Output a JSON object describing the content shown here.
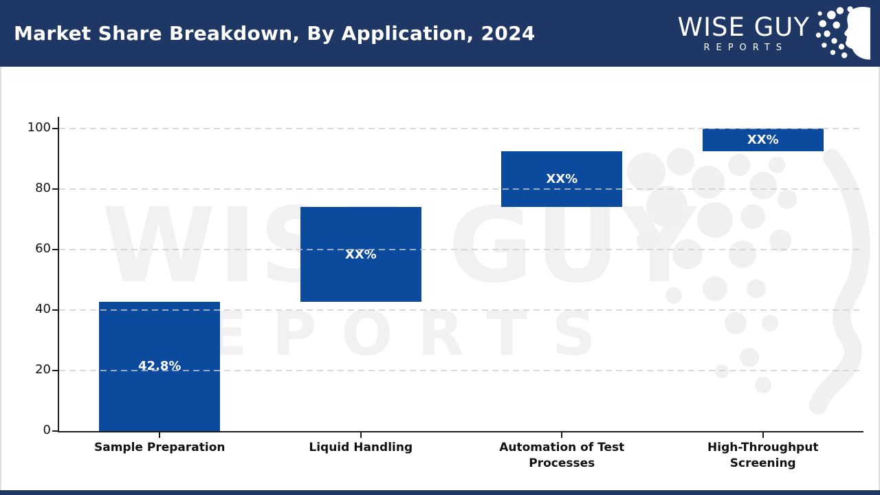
{
  "header": {
    "title": "Market Share Breakdown, By Application, 2024",
    "logo": {
      "wordmark": "WISE GUY",
      "subtext": "REPORTS"
    }
  },
  "watermark": {
    "wordmark": "WISE GUY",
    "subtext": "REPORTS"
  },
  "chart_data": {
    "type": "bar",
    "subtype": "waterfall",
    "title": "Market Share Breakdown, By Application, 2024",
    "categories": [
      "Sample Preparation",
      "Liquid Handling",
      "Automation of Test Processes",
      "High-Throughput Screening"
    ],
    "segments": [
      {
        "category": "Sample Preparation",
        "start": 0,
        "end": 42.8,
        "label": "42.8%"
      },
      {
        "category": "Liquid Handling",
        "start": 42.8,
        "end": 74,
        "label": "XX%"
      },
      {
        "category": "Automation of Test Processes",
        "start": 74,
        "end": 92.5,
        "label": "XX%"
      },
      {
        "category": "High-Throughput Screening",
        "start": 92.5,
        "end": 100,
        "label": "XX%"
      }
    ],
    "ylim": [
      0,
      100
    ],
    "yticks": [
      0,
      20,
      40,
      60,
      80,
      100
    ],
    "xlabel": "",
    "ylabel": "",
    "grid": "horizontal-dashed",
    "legend": "none",
    "bar_color": "#0c4a9e",
    "bar_label_color": "#ffffff"
  },
  "colors": {
    "header_bg": "#1e3765",
    "footer_bg": "#1e3765",
    "axis": "#1c1c1c",
    "gridline": "#cccccc",
    "watermark": "#f1f1f1"
  }
}
